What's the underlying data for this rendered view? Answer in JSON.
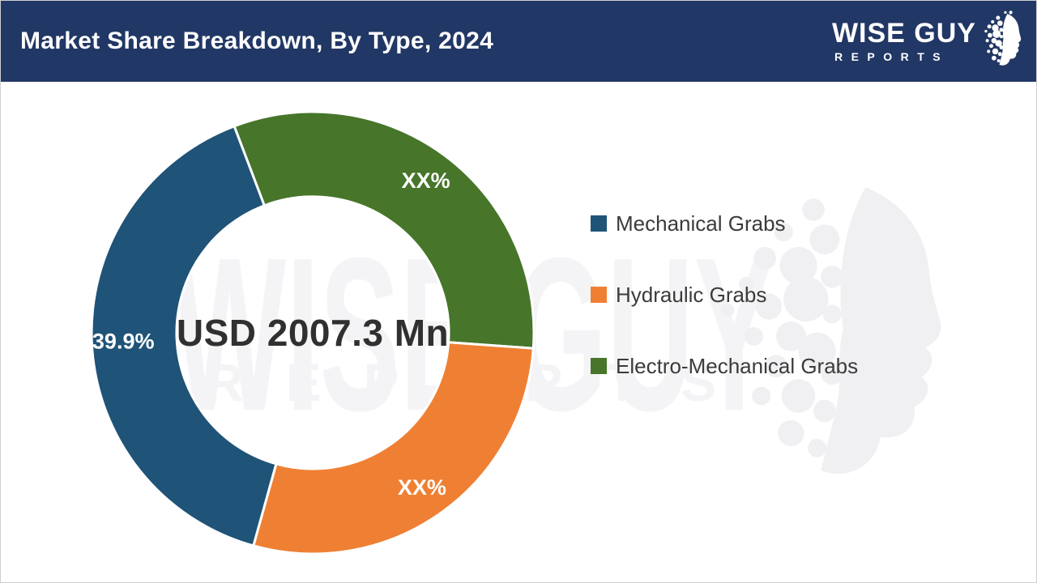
{
  "header": {
    "title": "Market Share Breakdown, By Type, 2024",
    "background_color": "#213765",
    "logo": {
      "wordmark": "WISE GUY",
      "subtitle": "REPORTS"
    }
  },
  "watermark": {
    "wordmark": "WISE GUY",
    "subtitle": "REPORTS"
  },
  "chart_data": {
    "type": "pie",
    "subtype": "donut",
    "title": "Market Share Breakdown, By Type, 2024",
    "center_label": "USD 2007.3 Mn",
    "unit": "%",
    "start_angle_deg": -20.8,
    "clockwise": true,
    "legend_position": "right",
    "draw_order": [
      "Electro-Mechanical Grabs",
      "Hydraulic Grabs",
      "Mechanical Grabs"
    ],
    "series": [
      {
        "name": "Mechanical Grabs",
        "value": 39.9,
        "display_label": "39.9%",
        "color": "#1F5377"
      },
      {
        "name": "Hydraulic Grabs",
        "value": 28.2,
        "display_label": "XX%",
        "color": "#EF8033"
      },
      {
        "name": "Electro-Mechanical Grabs",
        "value": 31.9,
        "display_label": "XX%",
        "color": "#47752A"
      }
    ]
  }
}
